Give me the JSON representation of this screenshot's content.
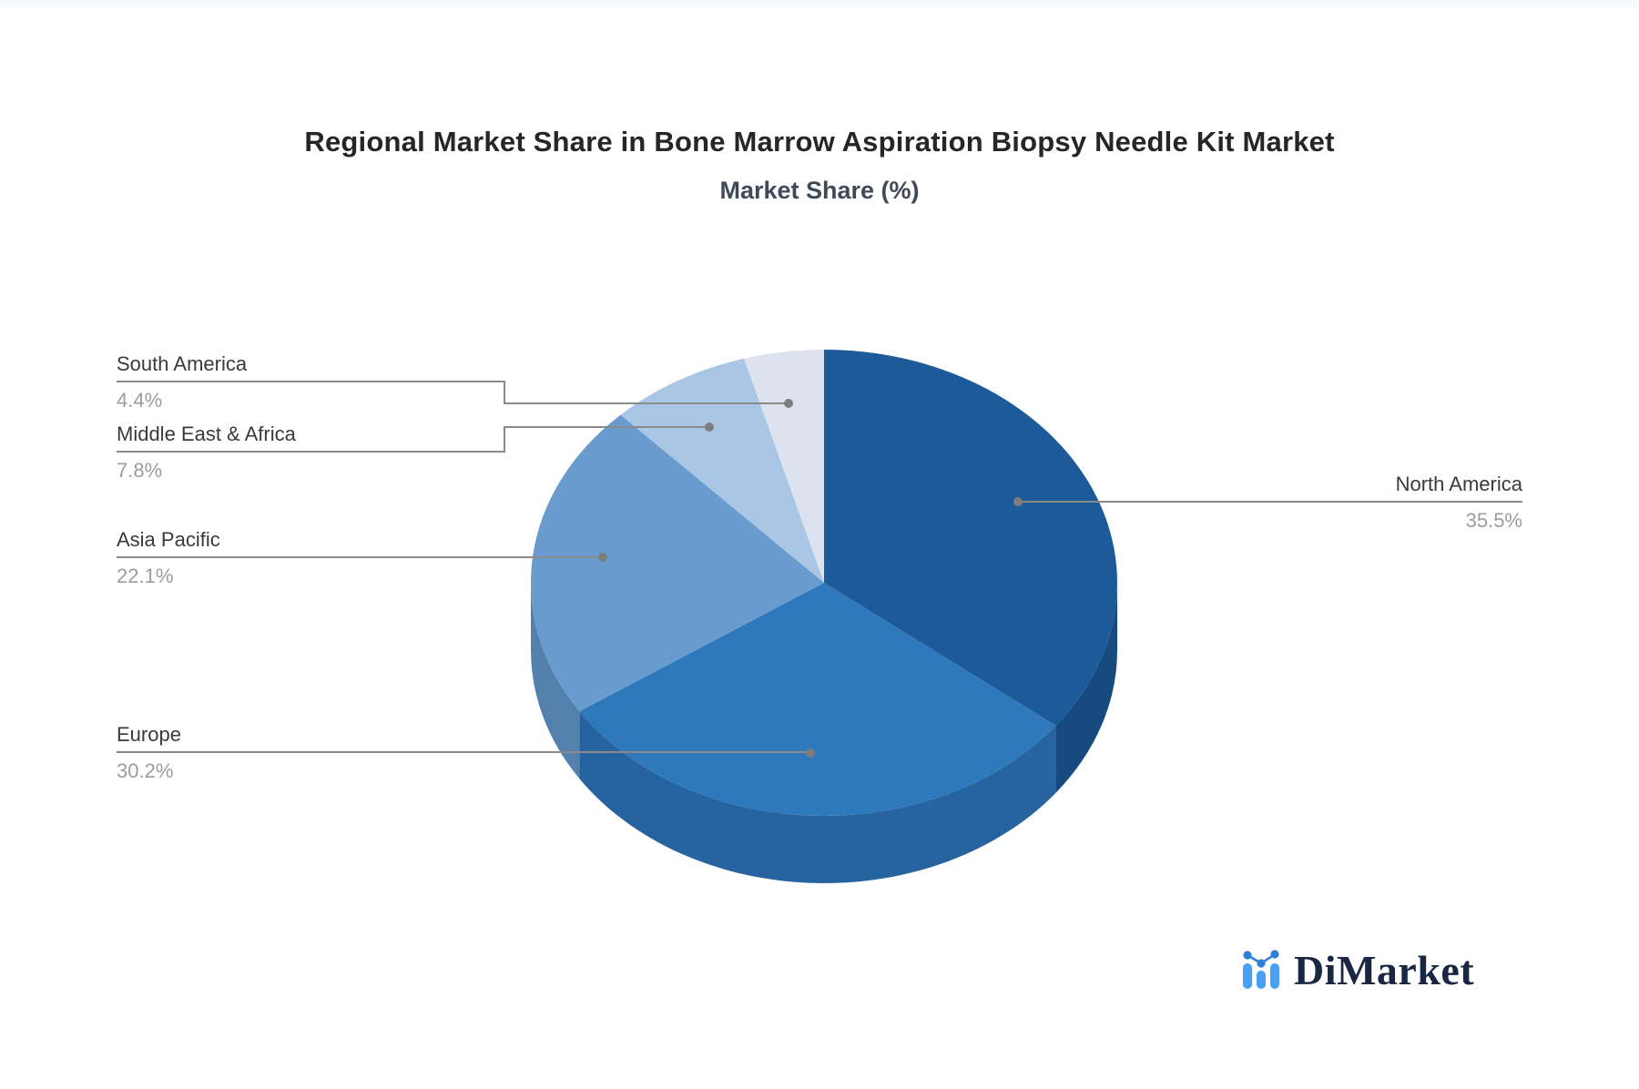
{
  "page": {
    "top_strip_color": "#f7f8f9",
    "background_color": "#ffffff"
  },
  "header": {
    "title": "Regional Market Share in Bone Marrow Aspiration Biopsy Needle Kit Market",
    "subtitle": "Market Share (%)"
  },
  "chart_data": {
    "type": "pie",
    "style": "3d",
    "title": "Regional Market Share in Bone Marrow Aspiration Biopsy Needle Kit Market",
    "subtitle": "Market Share (%)",
    "unit": "%",
    "start_angle_deg": 0,
    "direction": "clockwise",
    "legend_position": "external-callout-labels",
    "categories": [
      "North America",
      "Europe",
      "Asia Pacific",
      "Middle East & Africa",
      "South America"
    ],
    "values": [
      35.5,
      30.2,
      22.1,
      7.8,
      4.4
    ],
    "labels_display": [
      "35.5%",
      "30.2%",
      "22.1%",
      "7.8%",
      "4.4%"
    ],
    "colors": [
      "#1d5a99",
      "#2e78bc",
      "#699bce",
      "#a9c7e4",
      "#dce3ee"
    ],
    "side_colors": [
      "#174a7e",
      "#27649f",
      "#5480ad",
      "#8fb3d6",
      "#c4d2e4"
    ],
    "callout_line_color": "#8a8a8a",
    "callout_dot_color": "#7d7d7d"
  },
  "branding": {
    "logo_text": "DiMarket",
    "logo_icon": "bar-chart-with-trend-dots-icon",
    "logo_text_color": "#1a2742",
    "logo_bar_color": "#49a0f3",
    "logo_dot_color": "#2e7fd9"
  }
}
